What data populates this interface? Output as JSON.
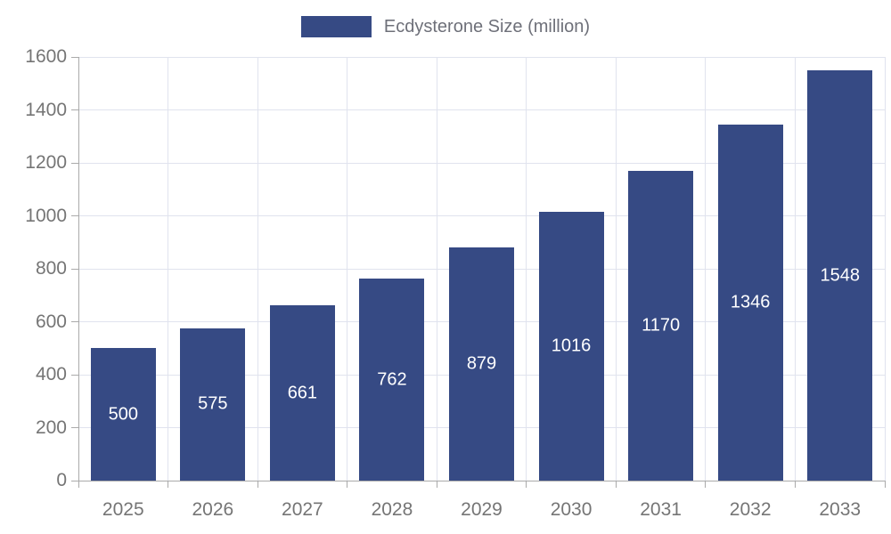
{
  "legend": {
    "label": "Ecdysterone Size (million)"
  },
  "chart_data": {
    "type": "bar",
    "title": "",
    "xlabel": "",
    "ylabel": "",
    "categories": [
      "2025",
      "2026",
      "2027",
      "2028",
      "2029",
      "2030",
      "2031",
      "2032",
      "2033"
    ],
    "series": [
      {
        "name": "Ecdysterone Size (million)",
        "values": [
          500,
          575,
          661,
          762,
          879,
          1016,
          1170,
          1346,
          1548
        ]
      }
    ],
    "value_labels": [
      500,
      575,
      661,
      762,
      879,
      1016,
      1170,
      1346,
      1548
    ],
    "ylim": [
      0,
      1600
    ],
    "ytick_step": 200,
    "yticks": [
      0,
      200,
      400,
      600,
      800,
      1000,
      1200,
      1400,
      1600
    ],
    "grid": true,
    "legend_position": "top-center"
  },
  "colors": {
    "bar": "#364a84",
    "grid_line": "#e0e3ee",
    "axis_line": "#aaaaaa",
    "tick_text": "#757575",
    "legend_text": "#6e7079",
    "value_label": "#ffffff",
    "background": "#ffffff"
  }
}
